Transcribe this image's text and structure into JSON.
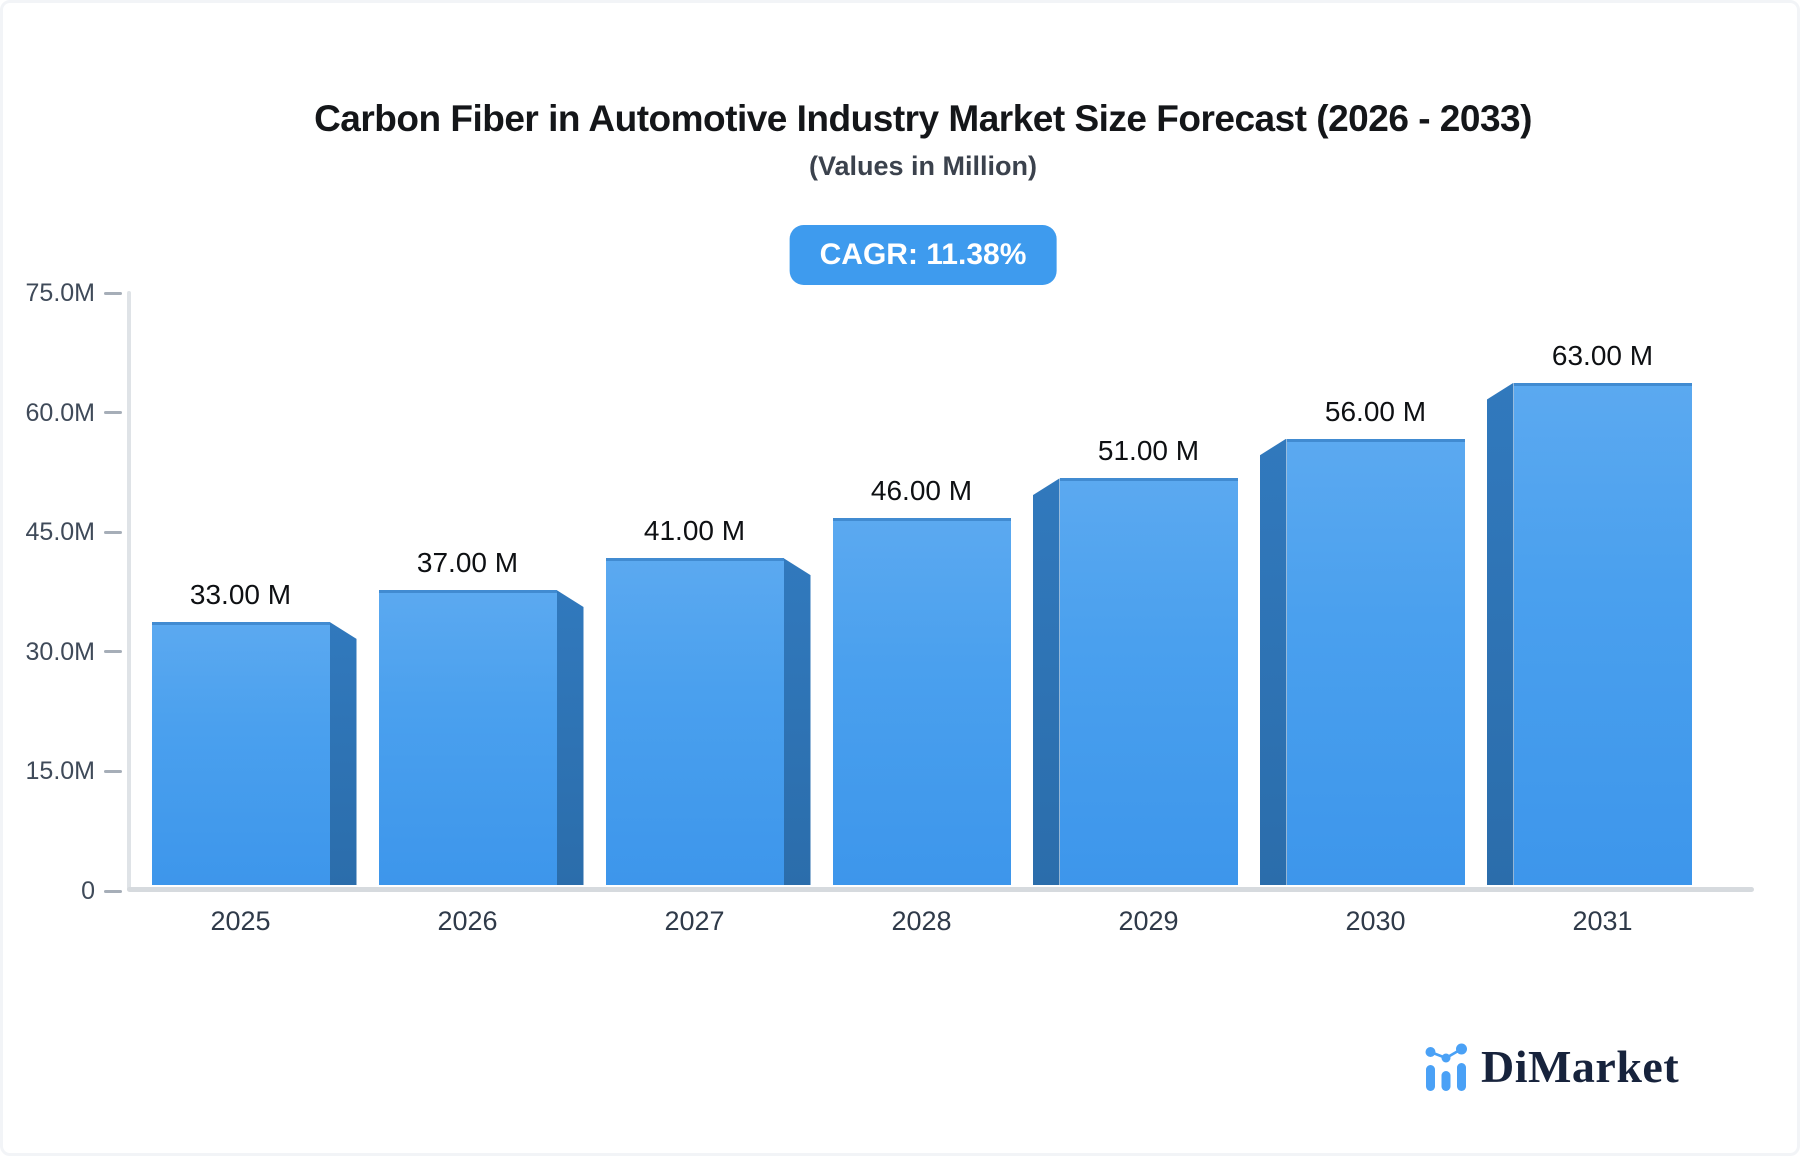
{
  "header": {
    "title": "Carbon Fiber in Automotive Industry Market Size Forecast (2026 - 2033)",
    "subtitle": "(Values in Million)"
  },
  "badge": {
    "label": "CAGR: 11.38%",
    "bg": "#3e9bee"
  },
  "chart_data": {
    "type": "bar",
    "title": "Carbon Fiber in Automotive Industry Market Size Forecast (2026 - 2033)",
    "subtitle": "(Values in Million)",
    "unit": "Million",
    "categories": [
      "2025",
      "2026",
      "2027",
      "2028",
      "2029",
      "2030",
      "2031"
    ],
    "values": [
      33,
      37,
      41,
      46,
      51,
      56,
      63
    ],
    "bar_labels": [
      "33.00 M",
      "37.00 M",
      "41.00 M",
      "46.00 M",
      "51.00 M",
      "56.00 M",
      "63.00 M"
    ],
    "yticks": [
      {
        "label": "75.0M",
        "value": 75
      },
      {
        "label": "60.0M",
        "value": 60
      },
      {
        "label": "45.0M",
        "value": 45
      },
      {
        "label": "30.0M",
        "value": 30
      },
      {
        "label": "15.0M",
        "value": 15
      },
      {
        "label": "0",
        "value": 0
      }
    ],
    "ylim": [
      0,
      75
    ],
    "grid": false,
    "legend": false,
    "colors": {
      "bar_face_top": "#5ba9f0",
      "bar_face_bottom": "#3d96eb",
      "bar_side": "#2e73b4",
      "axis": "#d6dade",
      "badge_bg": "#3e9bee"
    }
  },
  "logo": {
    "text": "DiMarket",
    "icon": "dimarket-bars-icon",
    "color": "#17233c",
    "accent": "#4aa1f6"
  }
}
